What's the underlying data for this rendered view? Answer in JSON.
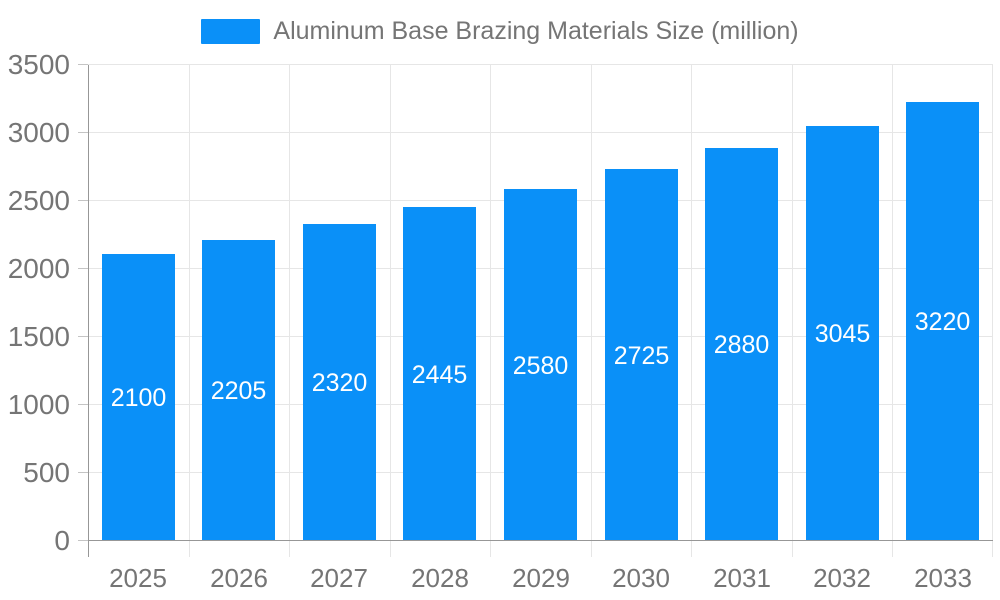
{
  "chart_data": {
    "type": "bar",
    "title": "Aluminum Base Brazing Materials Size (million)",
    "categories": [
      "2025",
      "2026",
      "2027",
      "2028",
      "2029",
      "2030",
      "2031",
      "2032",
      "2033"
    ],
    "values": [
      2100,
      2205,
      2320,
      2445,
      2580,
      2725,
      2880,
      3045,
      3220
    ],
    "value_labels": [
      "2100",
      "2205",
      "2320",
      "2445",
      "2580",
      "2725",
      "2880",
      "3045",
      "3220"
    ],
    "yticks": [
      0,
      500,
      1000,
      1500,
      2000,
      2500,
      3000,
      3500
    ],
    "ytick_labels": [
      "0",
      "500",
      "1000",
      "1500",
      "2000",
      "2500",
      "3000",
      "3500"
    ],
    "ylim": [
      0,
      3500
    ],
    "grid": true,
    "legend_position": "top",
    "xlabel": "",
    "ylabel": ""
  },
  "colors": {
    "bar": "#0a90f8",
    "gridline": "#e6e6e6",
    "axis_line": "#979797",
    "tick": "#c4c4c4",
    "axis_text": "#757575",
    "bar_label_text": "#ffffff",
    "background": "#ffffff"
  }
}
